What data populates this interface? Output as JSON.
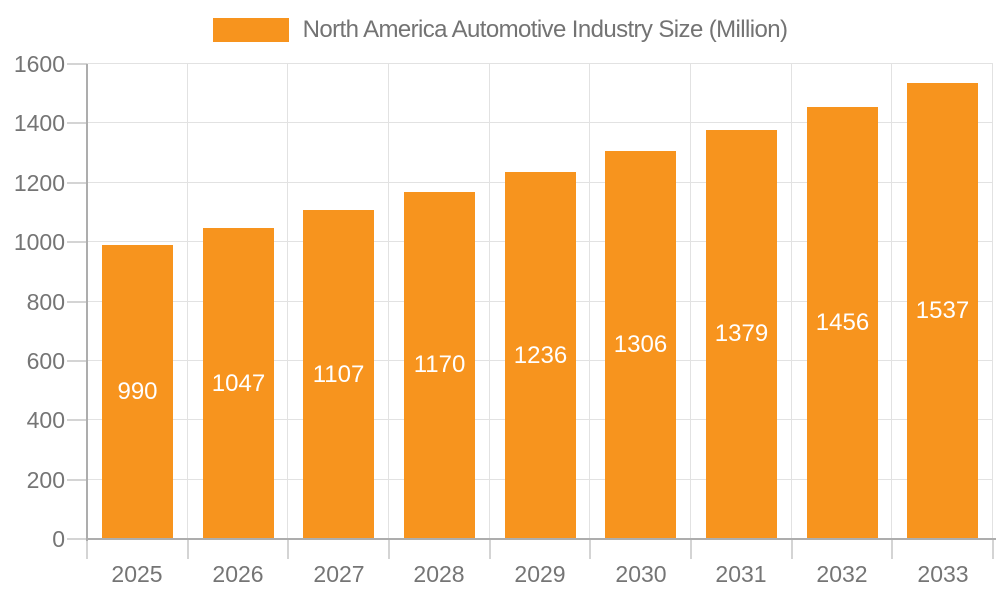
{
  "chart_data": {
    "type": "bar",
    "title": "North America Automotive Industry Size (Million)",
    "categories": [
      "2025",
      "2026",
      "2027",
      "2028",
      "2029",
      "2030",
      "2031",
      "2032",
      "2033"
    ],
    "values": [
      990,
      1047,
      1107,
      1170,
      1236,
      1306,
      1379,
      1456,
      1537
    ],
    "series": [
      {
        "name": "North America Automotive Industry Size (Million)",
        "values": [
          990,
          1047,
          1107,
          1170,
          1236,
          1306,
          1379,
          1456,
          1537
        ]
      }
    ],
    "xlabel": "",
    "ylabel": "",
    "ylim": [
      0,
      1600
    ],
    "yticks": [
      "0",
      "200",
      "400",
      "600",
      "800",
      "1000",
      "1200",
      "1400",
      "1600"
    ],
    "grid": "both",
    "legend_position": "top-center",
    "data_labels_position": "inside-center",
    "colors": {
      "bar": "#F7941E",
      "bar_label": "#FFFFFF",
      "axis_text": "#757575",
      "legend_text": "#737373",
      "gridline": "#E2E2E2",
      "tick": "#D4D4D4",
      "axis_line": "#ADADAD",
      "background": "#FFFFFF"
    }
  }
}
